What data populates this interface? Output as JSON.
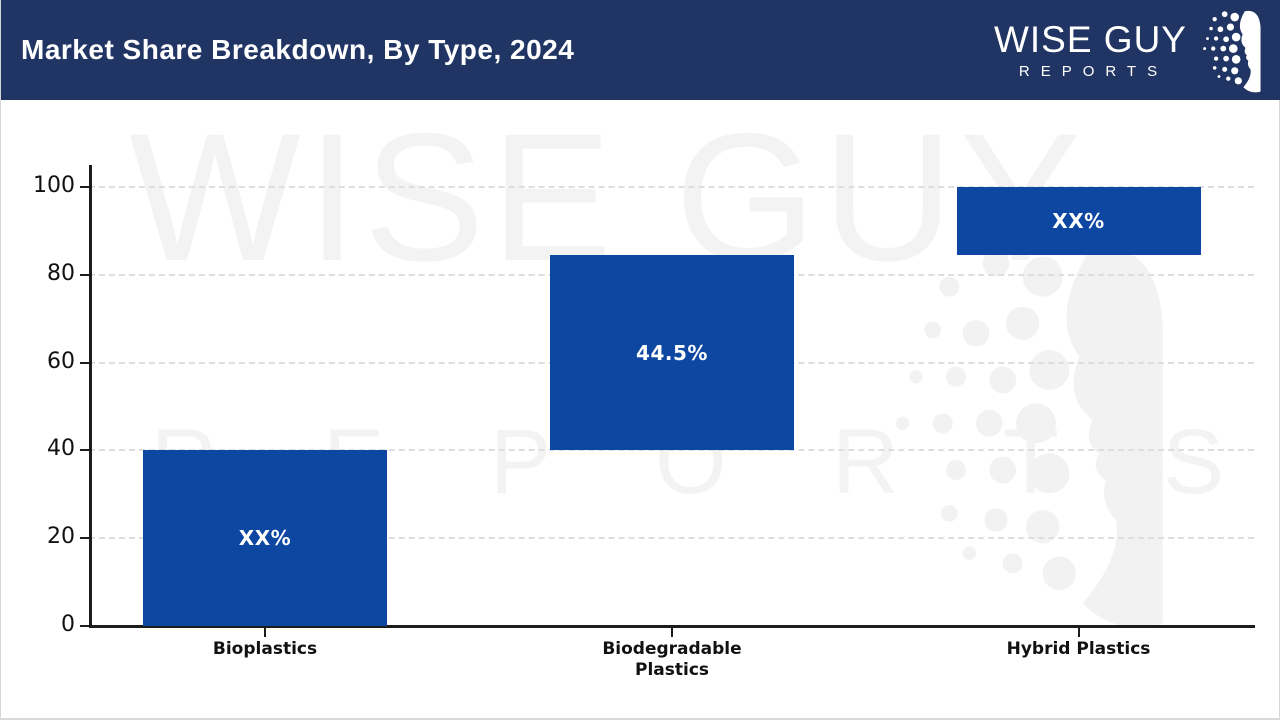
{
  "header": {
    "title": "Market Share Breakdown, By Type, 2024",
    "logo": {
      "line1": "WISE GUY",
      "line2": "REPORTS"
    }
  },
  "watermark": {
    "line1": "WISE GUY",
    "line2": "R E P O R T S"
  },
  "theme": {
    "header_bg": "#213564",
    "bar_color": "#0d47a1",
    "bar_label_color": "#ffffff",
    "grid_color": "#dedede",
    "axis_color": "#1c1c1c",
    "watermark_color": "#f3f3f3"
  },
  "chart_data": {
    "type": "bar",
    "variant": "waterfall",
    "title": "Market Share Breakdown, By Type, 2024",
    "categories": [
      "Bioplastics",
      "Biodegradable\nPlastics",
      "Hybrid Plastics"
    ],
    "segments": [
      {
        "category": "Bioplastics",
        "start": 0,
        "end": 40,
        "label": "XX%"
      },
      {
        "category": "Biodegradable Plastics",
        "start": 40,
        "end": 84.5,
        "label": "44.5%"
      },
      {
        "category": "Hybrid Plastics",
        "start": 84.5,
        "end": 100,
        "label": "XX%"
      }
    ],
    "xlabel": "",
    "ylabel": "",
    "ylim": [
      0,
      100
    ],
    "yticks": [
      0,
      20,
      40,
      60,
      80,
      100
    ],
    "grid": "horizontal-dashed",
    "legend": "none",
    "bar_color": "#0d47a1"
  }
}
